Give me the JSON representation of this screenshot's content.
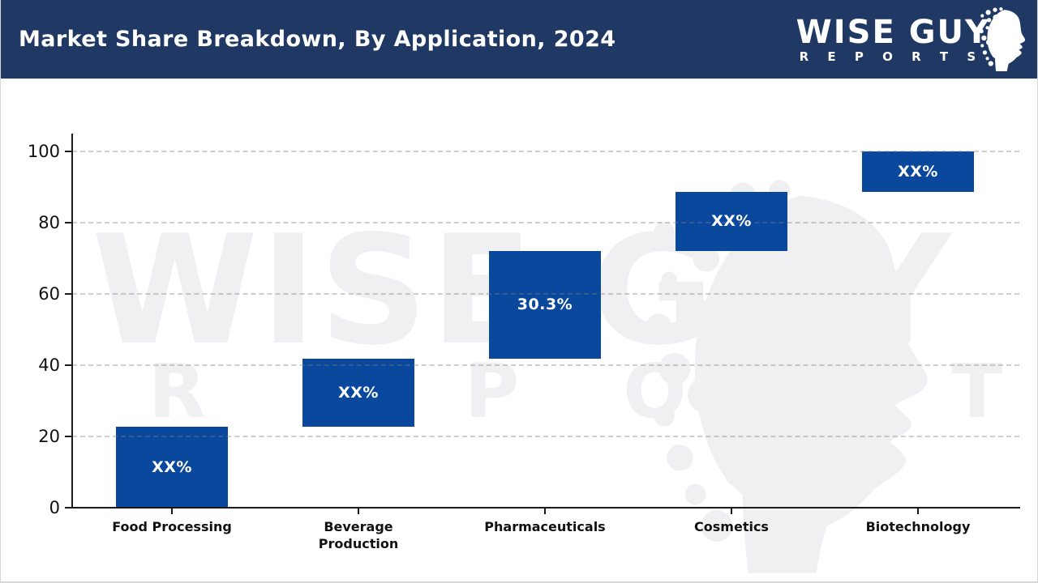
{
  "page": {
    "background": "#ffffff",
    "border_color": "#d9d9d9"
  },
  "header": {
    "background": "#1f3864",
    "title": "Market Share Breakdown, By Application, 2024",
    "logo": {
      "line1": "WISE GUY",
      "line2": "R E P O R T S"
    }
  },
  "watermark": {
    "line1": "WISE GUY",
    "line2": "R E P O R T S",
    "color": "#f0f0f3"
  },
  "chart_data": {
    "type": "bar",
    "subtype": "floating-waterfall",
    "title": "Market Share Breakdown, By Application, 2024",
    "categories": [
      "Food Processing",
      "Beverage Production",
      "Pharmaceuticals",
      "Cosmetics",
      "Biotechnology"
    ],
    "bars": [
      {
        "category": "Food Processing",
        "display": "Food Processing",
        "start": 0,
        "end": 22.7,
        "value": 22.7,
        "label": "XX%"
      },
      {
        "category": "Beverage Production",
        "display": "Beverage\nProduction",
        "start": 22.7,
        "end": 41.8,
        "value": 19.1,
        "label": "XX%"
      },
      {
        "category": "Pharmaceuticals",
        "display": "Pharmaceuticals",
        "start": 41.8,
        "end": 72.1,
        "value": 30.3,
        "label": "30.3%"
      },
      {
        "category": "Cosmetics",
        "display": "Cosmetics",
        "start": 72.1,
        "end": 88.6,
        "value": 16.5,
        "label": "XX%"
      },
      {
        "category": "Biotechnology",
        "display": "Biotechnology",
        "start": 88.6,
        "end": 100,
        "value": 11.4,
        "label": "XX%"
      }
    ],
    "xlabel": "",
    "ylabel": "",
    "ylim": [
      0,
      105
    ],
    "yticks": [
      0,
      20,
      40,
      60,
      80,
      100
    ],
    "grid": "horizontal-dashed",
    "legend": "none",
    "bar_color": "#0a489e",
    "bar_label_color": "#ffffff",
    "axis_color": "#1a1a1a",
    "gridline_color": "rgba(125,125,125,0.38)"
  }
}
